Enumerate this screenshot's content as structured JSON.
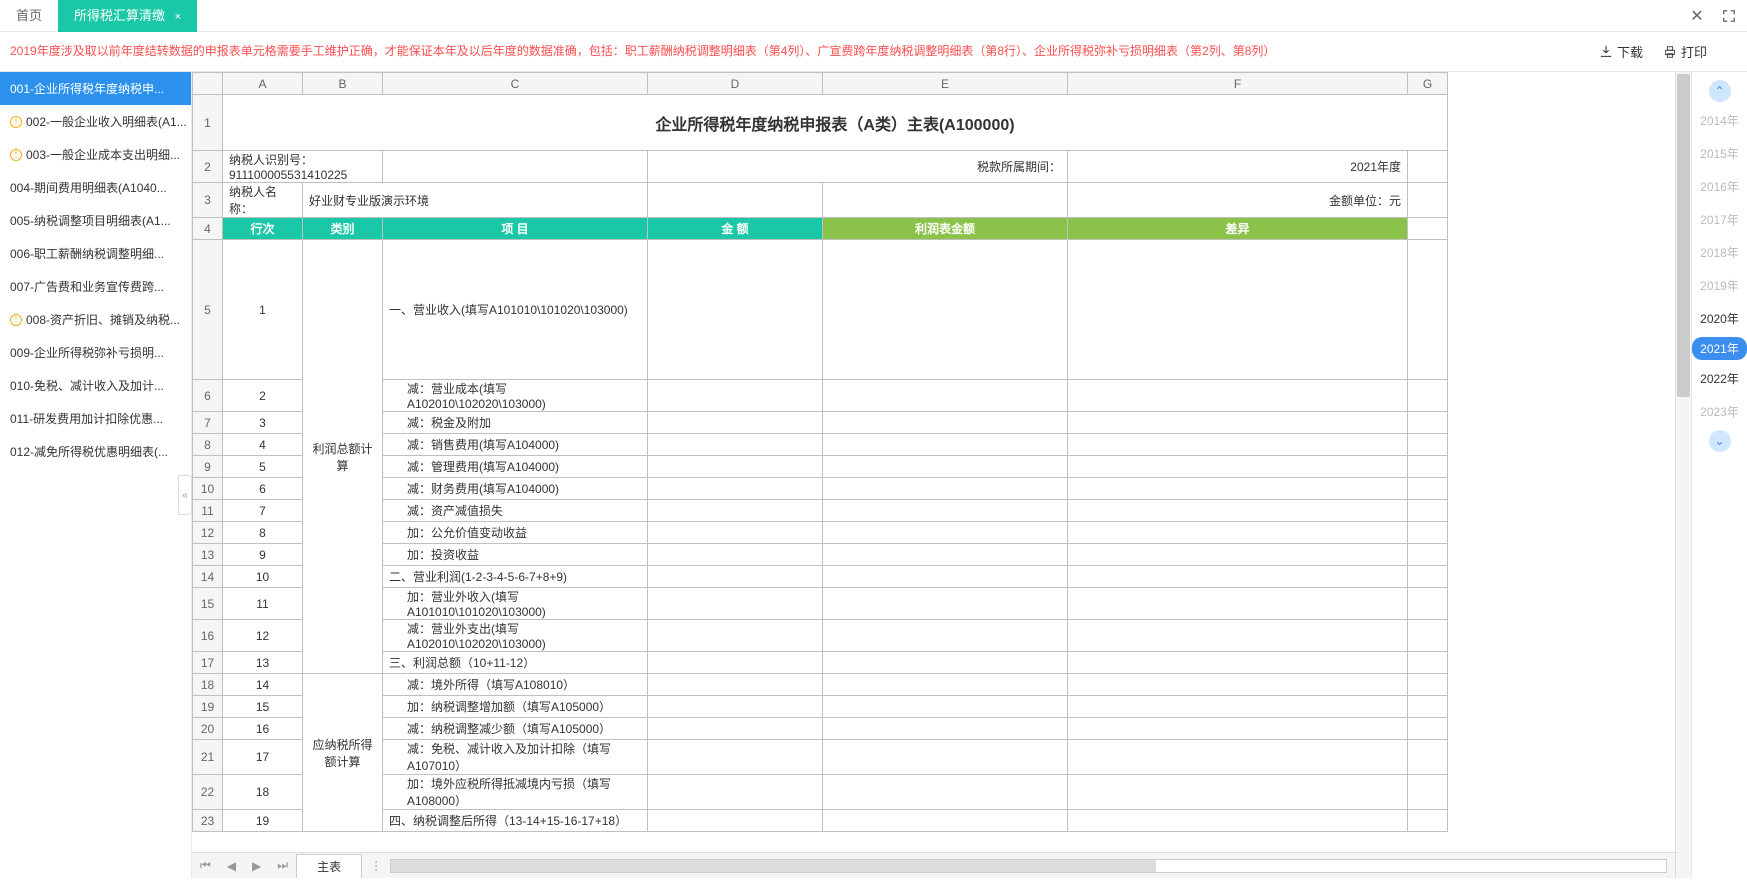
{
  "tabs": {
    "home": "首页",
    "active": "所得税汇算清缴"
  },
  "warning": "2019年度涉及取以前年度结转数据的申报表单元格需要手工维护正确，才能保证本年及以后年度的数据准确，包括：职工薪酬纳税调整明细表（第4列）、广宣费跨年度纳税调整明细表（第8行）、企业所得税弥补亏损明细表（第2列、第8列）",
  "actions": {
    "download": "下载",
    "print": "打印"
  },
  "sidebar": [
    {
      "label": "001-企业所得税年度纳税申...",
      "active": true,
      "warn": false
    },
    {
      "label": "002-一般企业收入明细表(A1...",
      "active": false,
      "warn": true
    },
    {
      "label": "003-一般企业成本支出明细...",
      "active": false,
      "warn": true
    },
    {
      "label": "004-期间费用明细表(A1040...",
      "active": false,
      "warn": false
    },
    {
      "label": "005-纳税调整项目明细表(A1...",
      "active": false,
      "warn": false
    },
    {
      "label": "006-职工薪酬纳税调整明细...",
      "active": false,
      "warn": false
    },
    {
      "label": "007-广告费和业务宣传费跨...",
      "active": false,
      "warn": false
    },
    {
      "label": "008-资产折旧、摊销及纳税...",
      "active": false,
      "warn": true
    },
    {
      "label": "009-企业所得税弥补亏损明...",
      "active": false,
      "warn": false
    },
    {
      "label": "010-免税、减计收入及加计...",
      "active": false,
      "warn": false
    },
    {
      "label": "011-研发费用加计扣除优惠...",
      "active": false,
      "warn": false
    },
    {
      "label": "012-减免所得税优惠明细表(...",
      "active": false,
      "warn": false
    }
  ],
  "sheet": {
    "cols": [
      "A",
      "B",
      "C",
      "D",
      "E",
      "F",
      "G"
    ],
    "title": "企业所得税年度纳税申报表（A类）主表(A100000)",
    "taxid_label": "纳税人识别号：",
    "taxid": "911100005531410225",
    "period_label": "税款所属期间：",
    "period": "2021年度",
    "name_label": "纳税人名称：",
    "name": "好业财专业版演示环境",
    "unit_label": "金额单位：元",
    "headers": {
      "seq": "行次",
      "cat": "类别",
      "item": "项    目",
      "amt": "金    额",
      "profit": "利润表金额",
      "diff": "差异"
    },
    "cat1": "利润总额计算",
    "cat2": "应纳税所得额计算",
    "rows": [
      {
        "n": "1",
        "item": "一、营业收入(填写A101010\\101020\\103000)",
        "tall": true
      },
      {
        "n": "2",
        "item": "减：营业成本(填写A102010\\102020\\103000)",
        "indent": true
      },
      {
        "n": "3",
        "item": "减：税金及附加",
        "indent": true
      },
      {
        "n": "4",
        "item": "减：销售费用(填写A104000)",
        "indent": true
      },
      {
        "n": "5",
        "item": "减：管理费用(填写A104000)",
        "indent": true
      },
      {
        "n": "6",
        "item": "减：财务费用(填写A104000)",
        "indent": true
      },
      {
        "n": "7",
        "item": "减：资产减值损失",
        "indent": true
      },
      {
        "n": "8",
        "item": "加：公允价值变动收益",
        "indent": true
      },
      {
        "n": "9",
        "item": "加：投资收益",
        "indent": true
      },
      {
        "n": "10",
        "item": "二、营业利润(1-2-3-4-5-6-7+8+9)"
      },
      {
        "n": "11",
        "item": "加：营业外收入(填写A101010\\101020\\103000)",
        "indent": true
      },
      {
        "n": "12",
        "item": "减：营业外支出(填写A102010\\102020\\103000)",
        "indent": true
      },
      {
        "n": "13",
        "item": "三、利润总额（10+11-12）"
      },
      {
        "n": "14",
        "item": "减：境外所得（填写A108010）",
        "indent": true
      },
      {
        "n": "15",
        "item": "加：纳税调整增加额（填写A105000）",
        "indent": true
      },
      {
        "n": "16",
        "item": "减：纳税调整减少额（填写A105000）",
        "indent": true
      },
      {
        "n": "17",
        "item": "减：免税、减计收入及加计扣除（填写A107010）",
        "indent": true
      },
      {
        "n": "18",
        "item": "加：境外应税所得抵减境内亏损（填写A108000）",
        "indent": true
      },
      {
        "n": "19",
        "item": "四、纳税调整后所得（13-14+15-16-17+18）"
      }
    ],
    "tab": "主表"
  },
  "years": [
    "2014年",
    "2015年",
    "2016年",
    "2017年",
    "2018年",
    "2019年",
    "2020年",
    "2021年",
    "2022年",
    "2023年"
  ],
  "active_year": "2021年",
  "colwidths": {
    "A": 80,
    "B": 80,
    "C": 265,
    "D": 175,
    "E": 245,
    "F": 340,
    "G": 40
  }
}
